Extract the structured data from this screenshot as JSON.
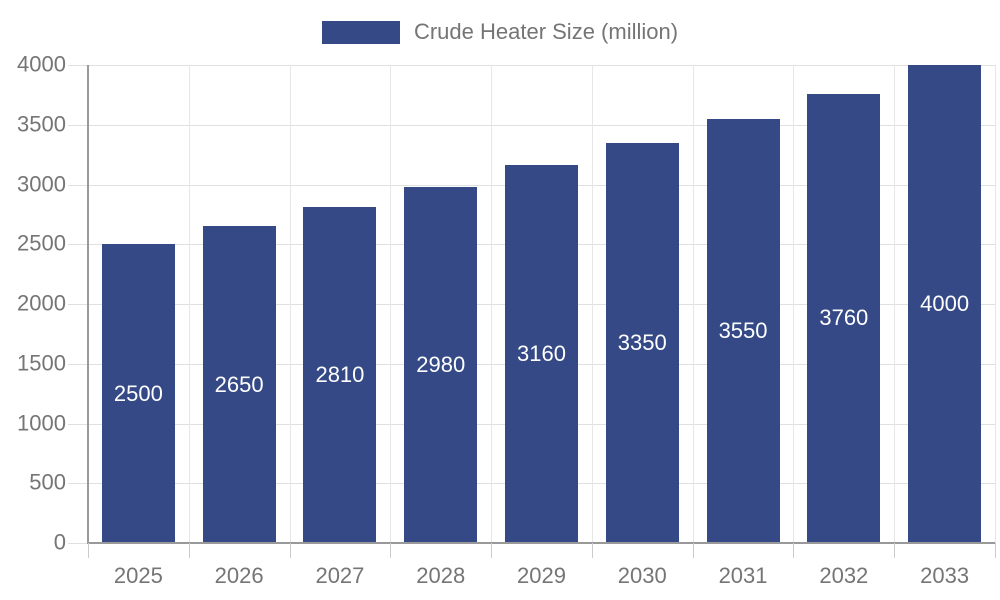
{
  "chart_data": {
    "type": "bar",
    "title": "",
    "legend": {
      "label": "Crude Heater Size (million)",
      "position": "top-center"
    },
    "categories": [
      "2025",
      "2026",
      "2027",
      "2028",
      "2029",
      "2030",
      "2031",
      "2032",
      "2033"
    ],
    "series": [
      {
        "name": "Crude Heater Size (million)",
        "values": [
          2500,
          2650,
          2810,
          2980,
          3160,
          3350,
          3550,
          3760,
          4000
        ]
      }
    ],
    "bar_value_labels": [
      "2500",
      "2650",
      "2810",
      "2980",
      "3160",
      "3350",
      "3550",
      "3760",
      "4000"
    ],
    "value_label_position": "inside-center",
    "xlabel": "",
    "ylabel": "",
    "ylim": [
      0,
      4000
    ],
    "yticks": [
      0,
      500,
      1000,
      1500,
      2000,
      2500,
      3000,
      3500,
      4000
    ],
    "grid": "horizontal-and-vertical",
    "legend_position": "top",
    "colors": {
      "bar": "#354987",
      "axis_text": "#757575",
      "legend_text": "#757575",
      "bar_label_text": "#ffffff",
      "gridline": "#e0e0e0",
      "axis_line": "#999999",
      "background": "#ffffff"
    }
  }
}
